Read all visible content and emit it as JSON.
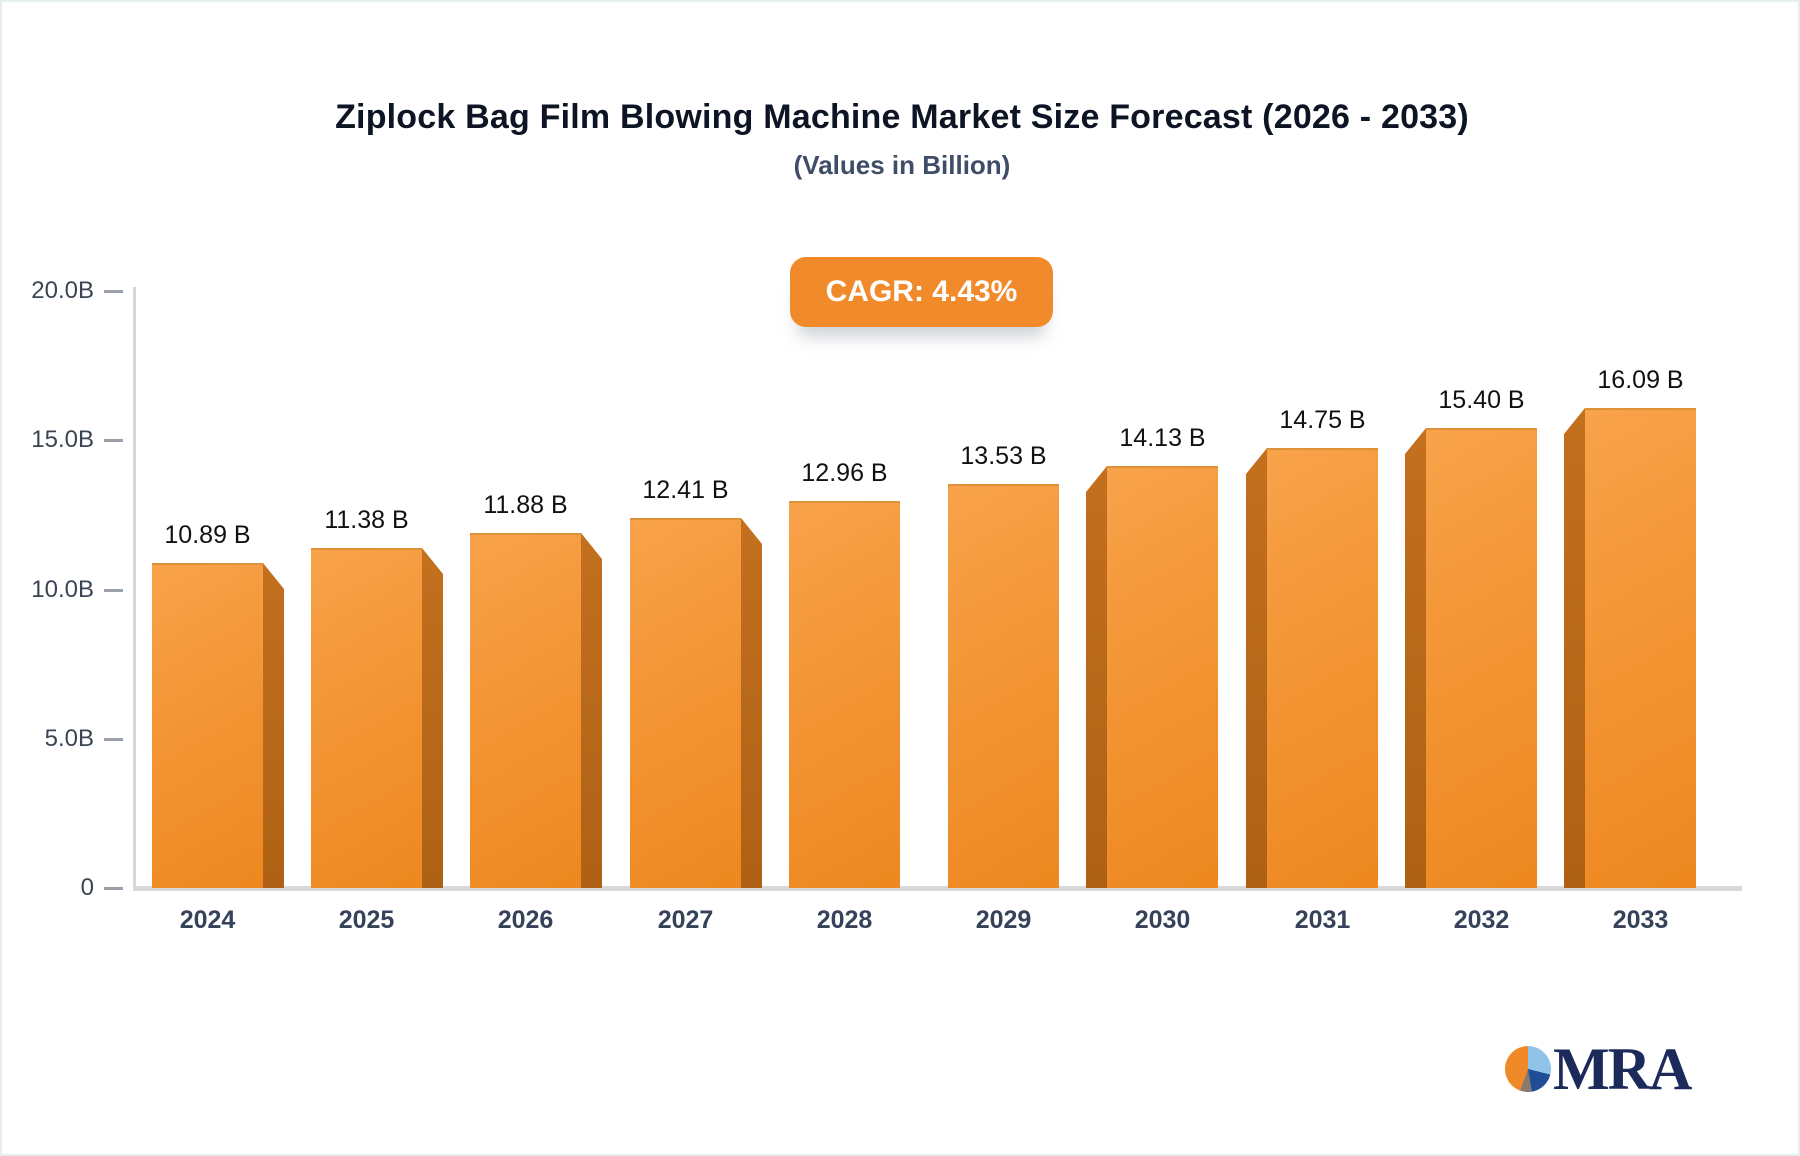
{
  "title": "Ziplock Bag Film Blowing Machine Market Size Forecast (2026 - 2033)",
  "subtitle": "(Values in Billion)",
  "cagr_badge": "CAGR: 4.43%",
  "logo": {
    "text": "MRA"
  },
  "colors": {
    "badge_bg": "#f08a2b",
    "bar_face_light": "#f8a24a",
    "bar_face_dark": "#ee8820",
    "bar_side": "#ba6b1c",
    "title_text": "#0d1524",
    "subtitle_text": "#3f4d68",
    "axis_text": "#3a4554",
    "value_text": "#0f1115",
    "logo_navy": "#1b2a5a",
    "pie_orange": "#f08a28",
    "pie_blue": "#8fc4e8",
    "pie_navy": "#1f4e96",
    "pie_brown": "#8a7a6e"
  },
  "chart_data": {
    "type": "bar",
    "title": "Ziplock Bag Film Blowing Machine Market Size Forecast (2026 - 2033)",
    "subtitle": "(Values in Billion)",
    "annotation": "CAGR: 4.43%",
    "categories": [
      "2024",
      "2025",
      "2026",
      "2027",
      "2028",
      "2029",
      "2030",
      "2031",
      "2032",
      "2033"
    ],
    "values": [
      10.89,
      11.38,
      11.88,
      12.41,
      12.96,
      13.53,
      14.13,
      14.75,
      15.4,
      16.09
    ],
    "value_labels": [
      "10.89 B",
      "11.38 B",
      "11.88 B",
      "12.41 B",
      "12.96 B",
      "13.53 B",
      "14.13 B",
      "14.75 B",
      "15.40 B",
      "16.09 B"
    ],
    "xlabel": "",
    "ylabel": "",
    "ylim": [
      0,
      20
    ],
    "grid": false,
    "legend": false,
    "yticks": [
      {
        "label": "20.0B",
        "value": 20
      },
      {
        "label": "15.0B",
        "value": 15
      },
      {
        "label": "10.0B",
        "value": 10
      },
      {
        "label": "5.0B",
        "value": 5
      },
      {
        "label": "0",
        "value": 0
      }
    ]
  }
}
